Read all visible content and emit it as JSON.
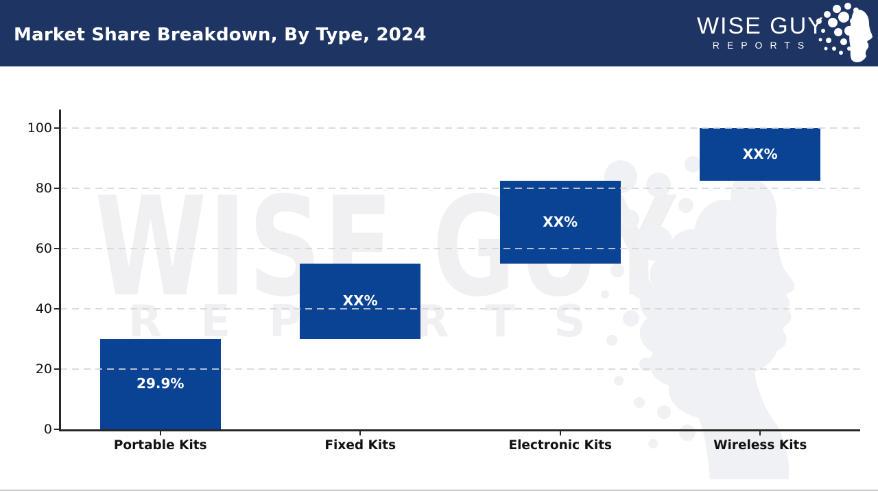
{
  "header": {
    "title": "Market Share Breakdown, By Type, 2024",
    "logo": {
      "wordmark": "WISE GUY",
      "subtext": "REPORTS"
    }
  },
  "watermark": {
    "wordmark": "WISE GUY",
    "subtext": "REPORTS"
  },
  "colors": {
    "header_bg": "#1e3563",
    "title_text": "#ffffff",
    "bar": "#0b4394",
    "bar_label": "#ffffff",
    "axis": "#262626",
    "grid": "#d6d6d6",
    "tick_text": "#111111",
    "category_text": "#111111",
    "watermark": "#f0f0f3",
    "footer_line": "#cbcbcb"
  },
  "chart_data": {
    "type": "bar",
    "subtype": "waterfall",
    "title": "Market Share Breakdown, By Type, 2024",
    "categories": [
      "Portable Kits",
      "Fixed Kits",
      "Electronic Kits",
      "Wireless Kits"
    ],
    "segments": [
      {
        "category": "Portable Kits",
        "start": 0,
        "end": 29.9,
        "label": "29.9%"
      },
      {
        "category": "Fixed Kits",
        "start": 29.9,
        "end": 55,
        "label": "XX%"
      },
      {
        "category": "Electronic Kits",
        "start": 55,
        "end": 82.5,
        "label": "XX%"
      },
      {
        "category": "Wireless Kits",
        "start": 82.5,
        "end": 100,
        "label": "XX%"
      }
    ],
    "xlabel": "",
    "ylabel": "",
    "yticks": [
      0,
      20,
      40,
      60,
      80,
      100
    ],
    "ylim": [
      0,
      100
    ],
    "grid": "horizontal-dashed",
    "legend": "none"
  }
}
